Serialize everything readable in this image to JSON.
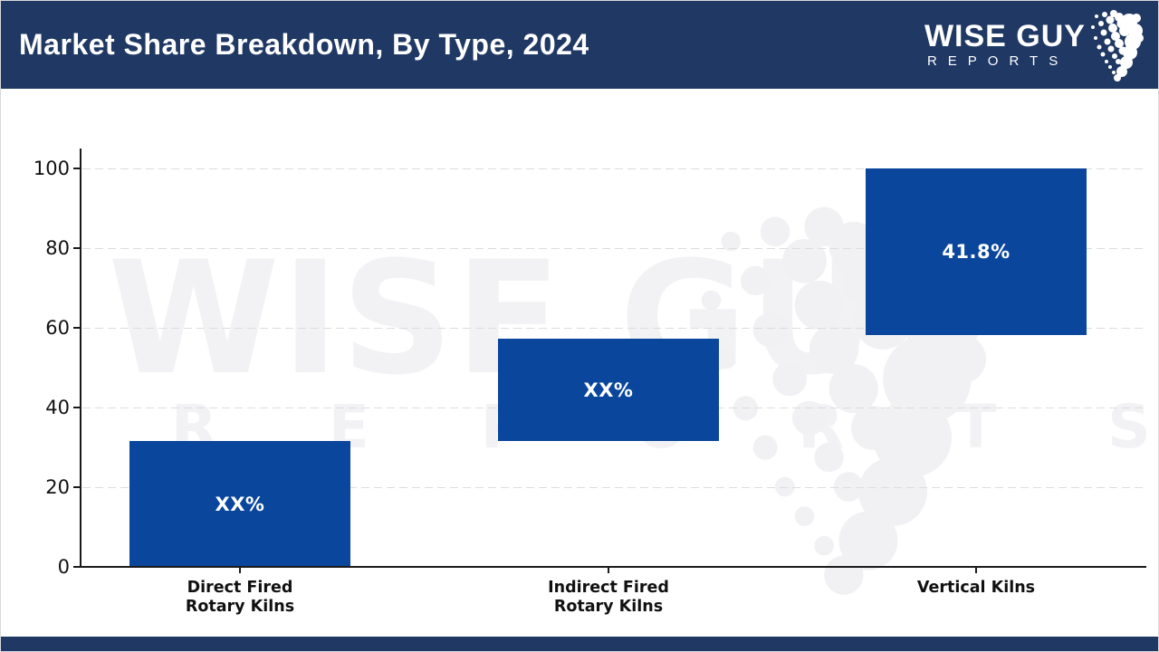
{
  "header": {
    "title": "Market Share Breakdown, By Type, 2024",
    "logo": {
      "line1": "WISE GUY",
      "line2": "REPORTS"
    }
  },
  "watermark": {
    "line1": "WISE GUY",
    "line2": "R E P O R T S"
  },
  "footer": {
    "present": true
  },
  "colors": {
    "header_bg": "#1F3864",
    "footer_bg": "#1F3864",
    "bar": "#0A469C",
    "bar_label": "#FFFFFF",
    "grid": "#DCDCDC",
    "axis": "#1A1A1A",
    "watermark": "#F2F2F5"
  },
  "chart_data": {
    "type": "bar",
    "subtype": "floating-waterfall",
    "title": "Market Share Breakdown, By Type, 2024",
    "xlabel": "",
    "ylabel": "",
    "grid": "horizontal dashed",
    "legend": "none",
    "ylim": [
      0,
      105
    ],
    "yticks": [
      0,
      20,
      40,
      60,
      80,
      100
    ],
    "categories": [
      [
        "Direct Fired",
        "Rotary Kilns"
      ],
      [
        "Indirect Fired",
        "Rotary Kilns"
      ],
      [
        "Vertical Kilns"
      ]
    ],
    "segments": [
      {
        "category": "Direct Fired Rotary Kilns",
        "start": 0,
        "end": 31.5,
        "label": "XX%"
      },
      {
        "category": "Indirect Fired Rotary Kilns",
        "start": 31.5,
        "end": 57.3,
        "label": "XX%"
      },
      {
        "category": "Vertical Kilns",
        "start": 58.2,
        "end": 100,
        "label": "41.8%"
      }
    ]
  }
}
